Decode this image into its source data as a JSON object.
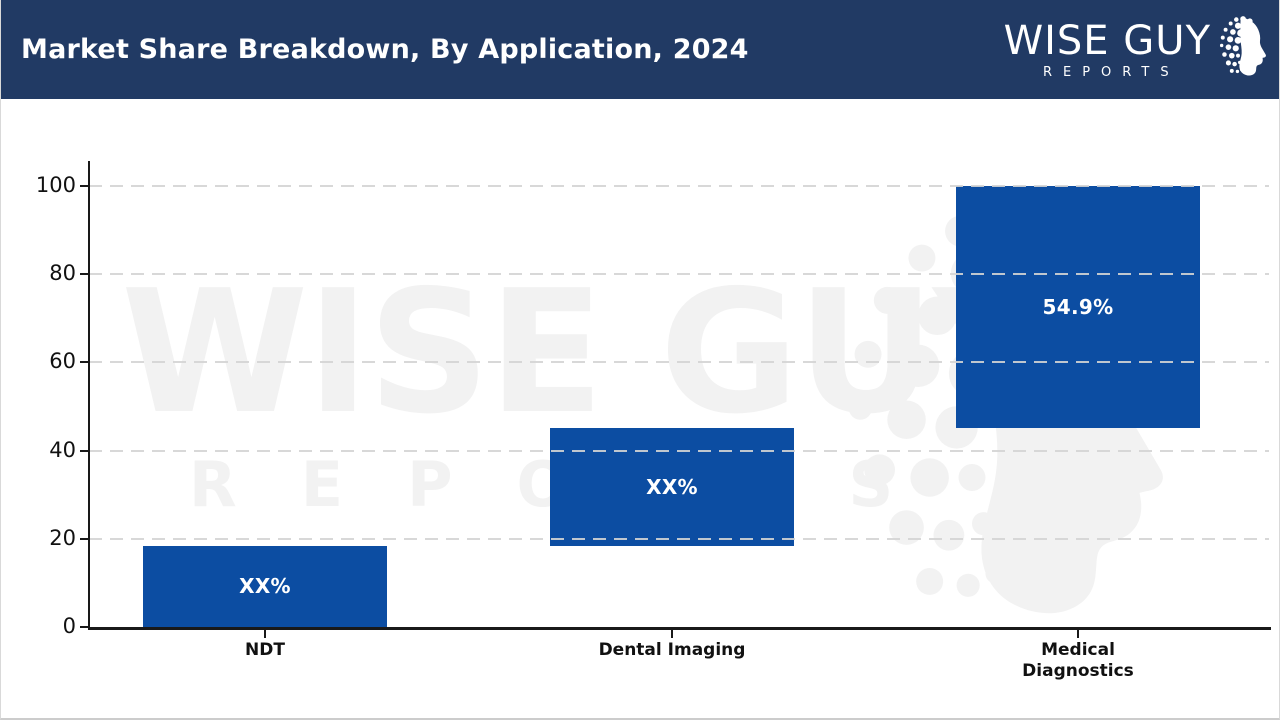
{
  "header": {
    "title": "Market Share Breakdown, By Application, 2024"
  },
  "logo": {
    "name": "WISE GUY",
    "sub": "REPORTS"
  },
  "watermark": {
    "name": "WISE GUY",
    "sub": "REPORTS"
  },
  "colors": {
    "header_bg": "#213a64",
    "bar": "#0c4da2",
    "axis": "#191919",
    "grid": "#d4d4d4",
    "bar_label": "#ffffff",
    "watermark": "#f2f2f2"
  },
  "chart_data": {
    "type": "bar",
    "subtype": "waterfall",
    "title": "Market Share Breakdown, By Application, 2024",
    "categories": [
      "NDT",
      "Dental Imaging",
      "Medical Diagnostics"
    ],
    "segments": [
      {
        "category": "NDT",
        "start": 0,
        "end": 18.4,
        "value": 18.4,
        "label": "XX%"
      },
      {
        "category": "Dental Imaging",
        "start": 18.4,
        "end": 45.1,
        "value": 26.7,
        "label": "XX%"
      },
      {
        "category": "Medical Diagnostics",
        "start": 45.1,
        "end": 100,
        "value": 54.9,
        "label": "54.9%"
      }
    ],
    "yticks": [
      0,
      20,
      40,
      60,
      80,
      100
    ],
    "ylim": [
      0,
      106
    ],
    "xlabel": "",
    "ylabel": "",
    "grid": "horizontal-dashed",
    "legend": "none"
  }
}
